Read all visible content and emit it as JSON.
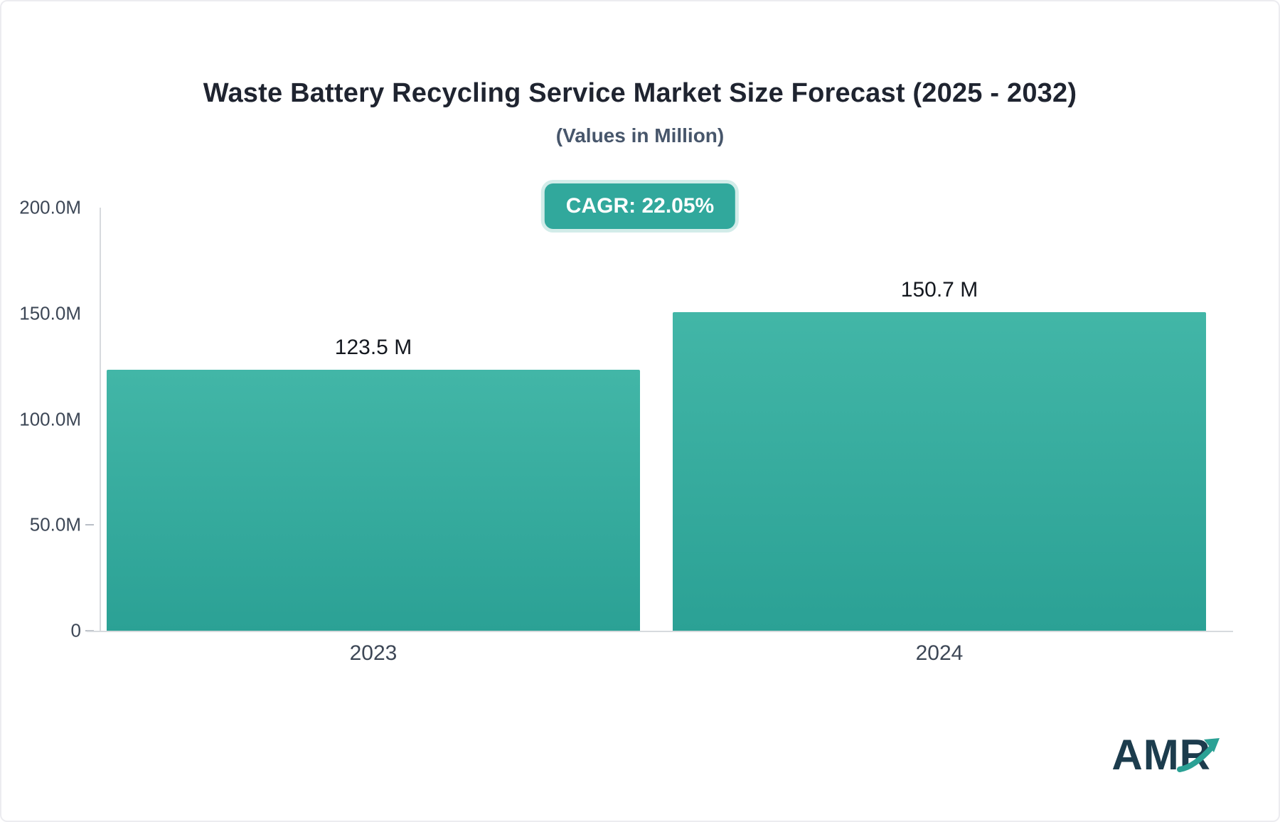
{
  "header": {
    "title": "Waste Battery Recycling Service Market Size Forecast (2025 - 2032)",
    "subtitle": "(Values in Million)"
  },
  "cagr_badge": "CAGR: 22.05%",
  "chart_data": {
    "type": "bar",
    "title": "Waste Battery Recycling Service Market Size Forecast (2025 - 2032)",
    "subtitle": "(Values in Million)",
    "unit": "Million",
    "categories": [
      "2023",
      "2024"
    ],
    "values": [
      123.5,
      150.7
    ],
    "value_labels": [
      "123.5 M",
      "150.7 M"
    ],
    "cagr_percent": "22.05%",
    "ylim": [
      0,
      200
    ],
    "yticks": [
      "200.0M",
      "150.0M",
      "100.0M",
      "50.0M",
      "0"
    ],
    "xlabel": "",
    "ylabel": "",
    "grid": false,
    "legend": "none",
    "colors": {
      "bar_gradient_top": "#42b6a7",
      "bar_gradient_bottom": "#2ba195",
      "badge_background": "#31a89c",
      "axis_line": "#d7dade",
      "title_text": "#1f2430",
      "subtitle_text": "#47566b"
    }
  },
  "logo": {
    "text": "AMR",
    "arrow_color": "#2ba195",
    "text_color": "#1c3c4d"
  }
}
